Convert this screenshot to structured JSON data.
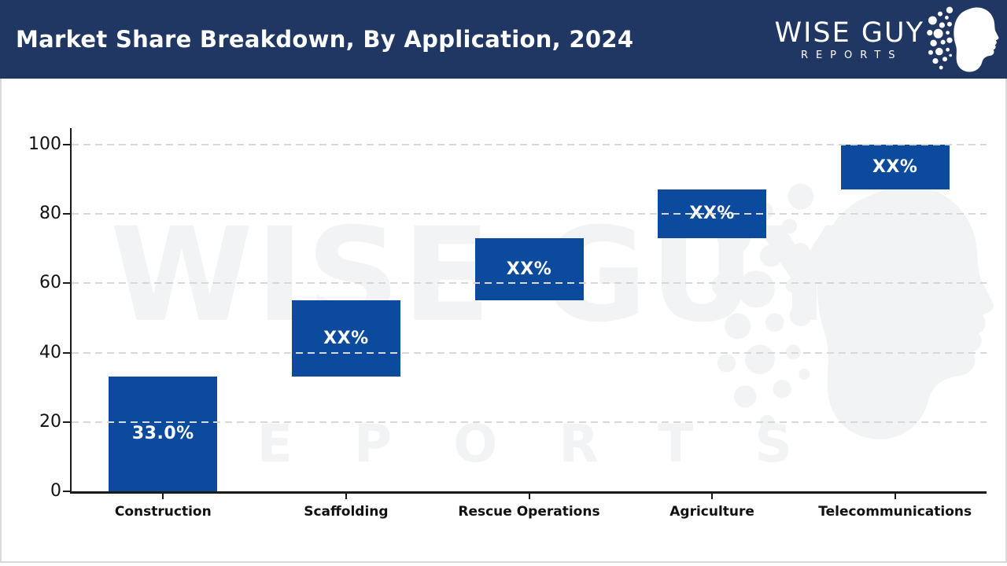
{
  "header": {
    "title": "Market Share Breakdown, By Application, 2024",
    "logo": {
      "wordmark": "WISE GUY",
      "subtext": "REPORTS",
      "head_icon": "face-profile-dots-icon"
    }
  },
  "watermark": {
    "line1": "WISE GUY",
    "line2": "REPORTS"
  },
  "colors": {
    "header_background": "#1f3762",
    "bar_fill": "#0c4a9e",
    "bar_label_text": "#ffffff",
    "gridline": "#d8d8d8",
    "axis": "#1a1a1a",
    "watermark": "#f2f3f5",
    "title_text": "#ffffff"
  },
  "chart_data": {
    "type": "bar",
    "variant": "stacked-waterfall",
    "title": "Market Share Breakdown, By Application, 2024",
    "categories": [
      "Construction",
      "Scaffolding",
      "Rescue Operations",
      "Agriculture",
      "Telecommunications"
    ],
    "segments": [
      {
        "category": "Construction",
        "start": 0,
        "end": 33,
        "label": "33.0%"
      },
      {
        "category": "Scaffolding",
        "start": 33,
        "end": 55,
        "label": "XX%"
      },
      {
        "category": "Rescue Operations",
        "start": 55,
        "end": 73,
        "label": "XX%"
      },
      {
        "category": "Agriculture",
        "start": 73,
        "end": 87,
        "label": "XX%"
      },
      {
        "category": "Telecommunications",
        "start": 87,
        "end": 100,
        "label": "XX%"
      }
    ],
    "xlabel": "",
    "ylabel": "",
    "ylim": [
      0,
      100
    ],
    "yticks": [
      0,
      20,
      40,
      60,
      80,
      100
    ],
    "grid": "horizontal-dashed",
    "legend": "none",
    "bar_labels_visible": true
  }
}
